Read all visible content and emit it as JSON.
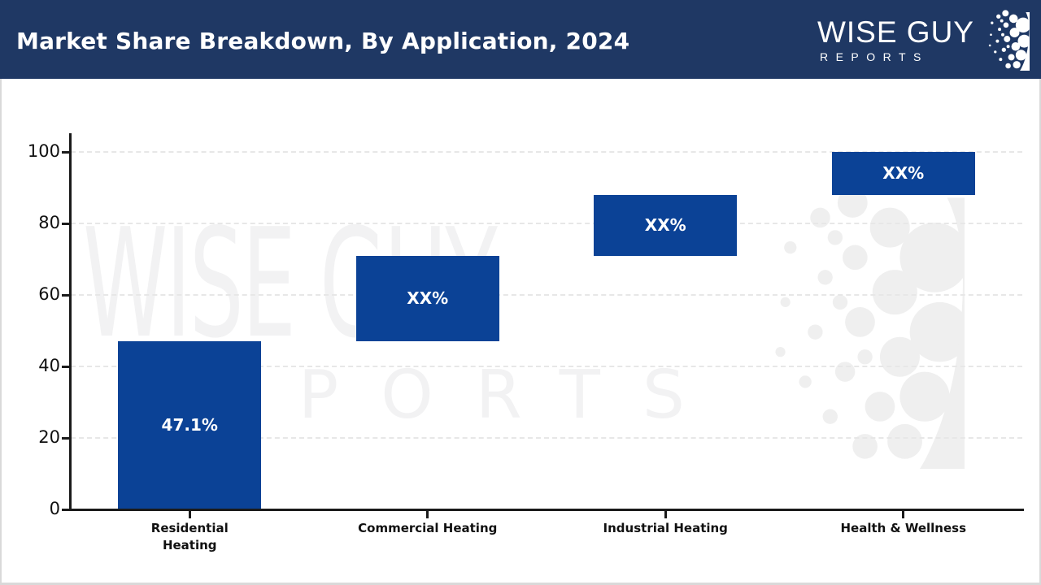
{
  "header": {
    "title": "Market Share Breakdown, By Application, 2024",
    "bg_color": "#1f3864",
    "logo": {
      "name_line": "WISE GUY",
      "sub_line": "REPORTS"
    }
  },
  "watermark": {
    "name_line": "WISE GUY",
    "sub_line": "REPORTS"
  },
  "chart_data": {
    "type": "bar",
    "subtype": "waterfall-floating-bars",
    "title": "Market Share Breakdown, By Application, 2024",
    "categories": [
      "Residential\nHeating",
      "Commercial Heating",
      "Industrial Heating",
      "Health & Wellness"
    ],
    "segments": [
      {
        "category": "Residential Heating",
        "start": 0,
        "end": 47.1,
        "value": 47.1,
        "label": "47.1%"
      },
      {
        "category": "Commercial Heating",
        "start": 47.1,
        "end": 71.0,
        "value": 23.9,
        "label": "XX%"
      },
      {
        "category": "Industrial Heating",
        "start": 71.0,
        "end": 88.0,
        "value": 17.0,
        "label": "XX%"
      },
      {
        "category": "Health & Wellness",
        "start": 88.0,
        "end": 100.0,
        "value": 12.0,
        "label": "XX%"
      }
    ],
    "xlabel": "",
    "ylabel": "",
    "ylim": [
      0,
      105
    ],
    "yticks": [
      0,
      20,
      40,
      60,
      80,
      100
    ],
    "grid": "horizontal-dashed",
    "legend": "none",
    "bar_color": "#0b4296",
    "bar_label_color": "#ffffff",
    "axis_color": "#1a1a1a",
    "gridline_color": "#e7e7e7"
  }
}
